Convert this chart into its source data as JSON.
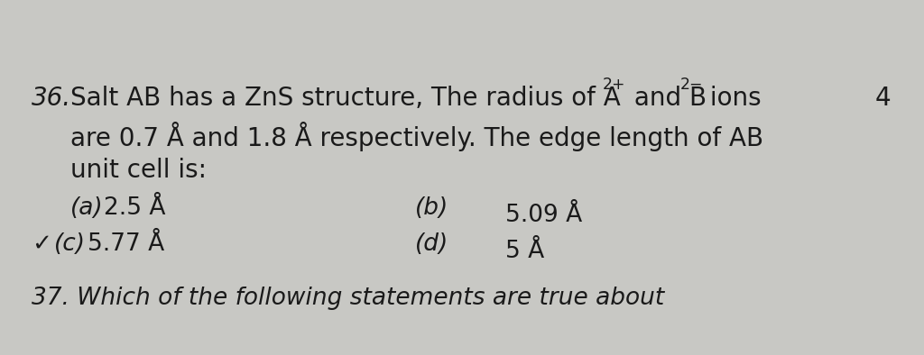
{
  "background_color": "#c8c8c4",
  "fig_width": 10.24,
  "fig_height": 3.94,
  "dpi": 100,
  "text_color": "#1a1a1a",
  "q36_num": "36.",
  "line1_main": "Salt AB has a ZnS structure, The radius of A",
  "sup1": "2+",
  "line1_mid": " and B",
  "sup2": "2−",
  "line1_end": " ions",
  "right_num": "4",
  "line2": "are 0.7 Å and 1.8 Å respectively. The edge length of AB",
  "line3": "unit cell is:",
  "opt_a_lbl": "(a)",
  "opt_a_val": "2.5 Å",
  "opt_b_lbl": "(b)",
  "opt_b_val": "5.09 Å",
  "opt_c_lbl": "(c)",
  "opt_c_val": "5.77 Å",
  "opt_c_check": "✓",
  "opt_d_lbl": "(d)",
  "opt_d_val": "5 Å",
  "q37_text": "37. Which of the following statements are true about",
  "fs_main": 20,
  "fs_opt": 19,
  "fs_next": 19,
  "fs_num": 18
}
